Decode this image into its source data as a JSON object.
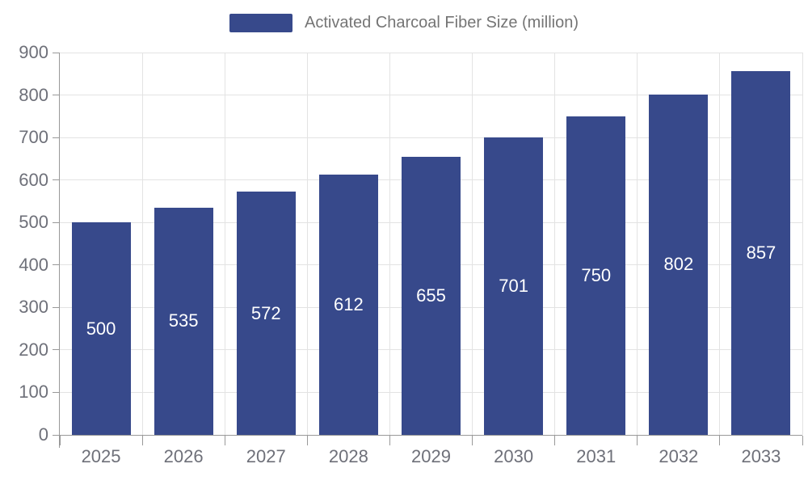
{
  "chart_data": {
    "type": "bar",
    "title": "Activated Charcoal Fiber Size (million)",
    "categories": [
      "2025",
      "2026",
      "2027",
      "2028",
      "2029",
      "2030",
      "2031",
      "2032",
      "2033"
    ],
    "values": [
      500,
      535,
      572,
      612,
      655,
      701,
      750,
      802,
      857
    ],
    "xlabel": "",
    "ylabel": "",
    "ylim": [
      0,
      900
    ],
    "ytick_step": 100,
    "ytick_labels": [
      "0",
      "100",
      "200",
      "300",
      "400",
      "500",
      "600",
      "700",
      "800",
      "900"
    ],
    "legend": {
      "label": "Activated Charcoal Fiber Size (million)",
      "position": "top"
    },
    "grid": "on",
    "colors": {
      "bar": "#37498B",
      "bar_label_text": "#ffffff",
      "axis_line": "#999999",
      "gridline": "#e3e3e3",
      "axis_text": "#6E7079",
      "legend_text": "#757575",
      "background": "#ffffff"
    }
  }
}
